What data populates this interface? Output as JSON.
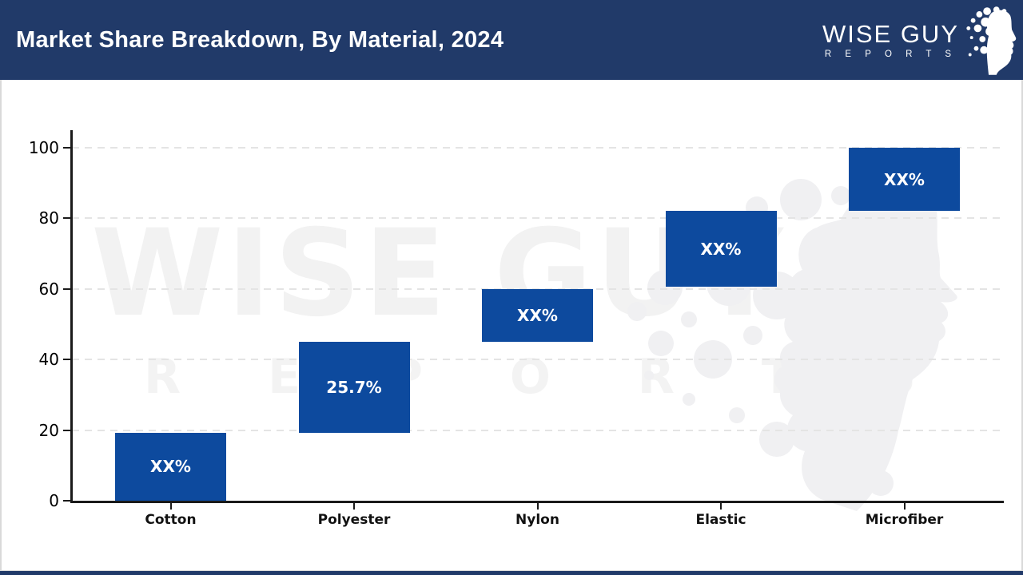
{
  "header": {
    "title": "Market Share Breakdown, By Material, 2024",
    "brand": {
      "name": "WISE GUY",
      "subtitle": "R E P O R T S"
    },
    "bg_color": "#213a69"
  },
  "watermark": {
    "line1": "WISE GUY",
    "line2": "R E P O R T S"
  },
  "chart_data": {
    "type": "bar",
    "variant": "waterfall",
    "title": "Market Share Breakdown, By Material, 2024",
    "categories": [
      "Cotton",
      "Polyester",
      "Nylon",
      "Elastic",
      "Microfiber"
    ],
    "segments": [
      {
        "category": "Cotton",
        "start": 0,
        "end": 19.3,
        "label": "XX%"
      },
      {
        "category": "Polyester",
        "start": 19.3,
        "end": 45.0,
        "label": "25.7%"
      },
      {
        "category": "Nylon",
        "start": 45.0,
        "end": 60.0,
        "label": "XX%"
      },
      {
        "category": "Elastic",
        "start": 60.5,
        "end": 82.0,
        "label": "XX%"
      },
      {
        "category": "Microfiber",
        "start": 82.0,
        "end": 99.8,
        "label": "XX%"
      }
    ],
    "yticks": [
      0,
      20,
      40,
      60,
      80,
      100
    ],
    "ylim": [
      0,
      105
    ],
    "xlabel": "",
    "ylabel": "",
    "grid": "dashed-horizontal-lightgray",
    "legend": "none",
    "bar_color": "#0d4a9e",
    "bar_label_color": "#ffffff"
  }
}
